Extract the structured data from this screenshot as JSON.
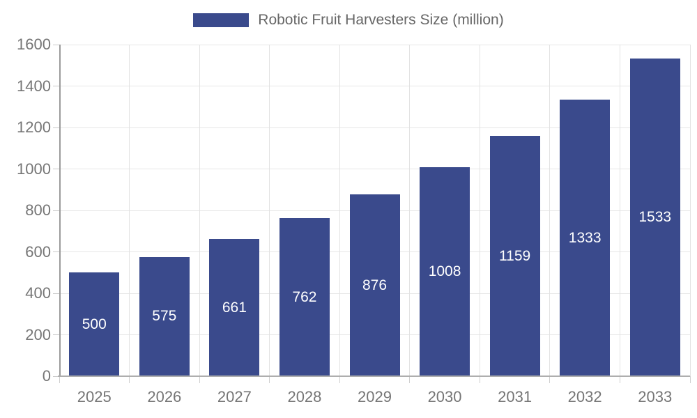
{
  "legend": {
    "label": "Robotic Fruit Harvesters Size (million)"
  },
  "chart_data": {
    "type": "bar",
    "title": "Robotic Fruit Harvesters Size (million)",
    "series_name": "Robotic Fruit Harvesters Size (million)",
    "categories": [
      "2025",
      "2026",
      "2027",
      "2028",
      "2029",
      "2030",
      "2031",
      "2032",
      "2033"
    ],
    "values": [
      500,
      575,
      661,
      762,
      876,
      1008,
      1159,
      1333,
      1533
    ],
    "value_labels": [
      "500",
      "575",
      "661",
      "762",
      "876",
      "1008",
      "1159",
      "1333",
      "1533"
    ],
    "xlabel": "",
    "ylabel": "",
    "ylim": [
      0,
      1600
    ],
    "yticks": [
      0,
      200,
      400,
      600,
      800,
      1000,
      1200,
      1400,
      1600
    ],
    "ytick_labels": [
      "0",
      "200",
      "400",
      "600",
      "800",
      "1000",
      "1200",
      "1400",
      "1600"
    ],
    "grid": true,
    "legend_position": "top",
    "colors": {
      "bar": "#3a4a8c",
      "bar_value_text": "#ffffff",
      "axis_text": "#757575",
      "legend_text": "#666666",
      "grid_line": "#e6e6e6",
      "axis_line": "#aeaeae",
      "background": "#ffffff"
    }
  }
}
